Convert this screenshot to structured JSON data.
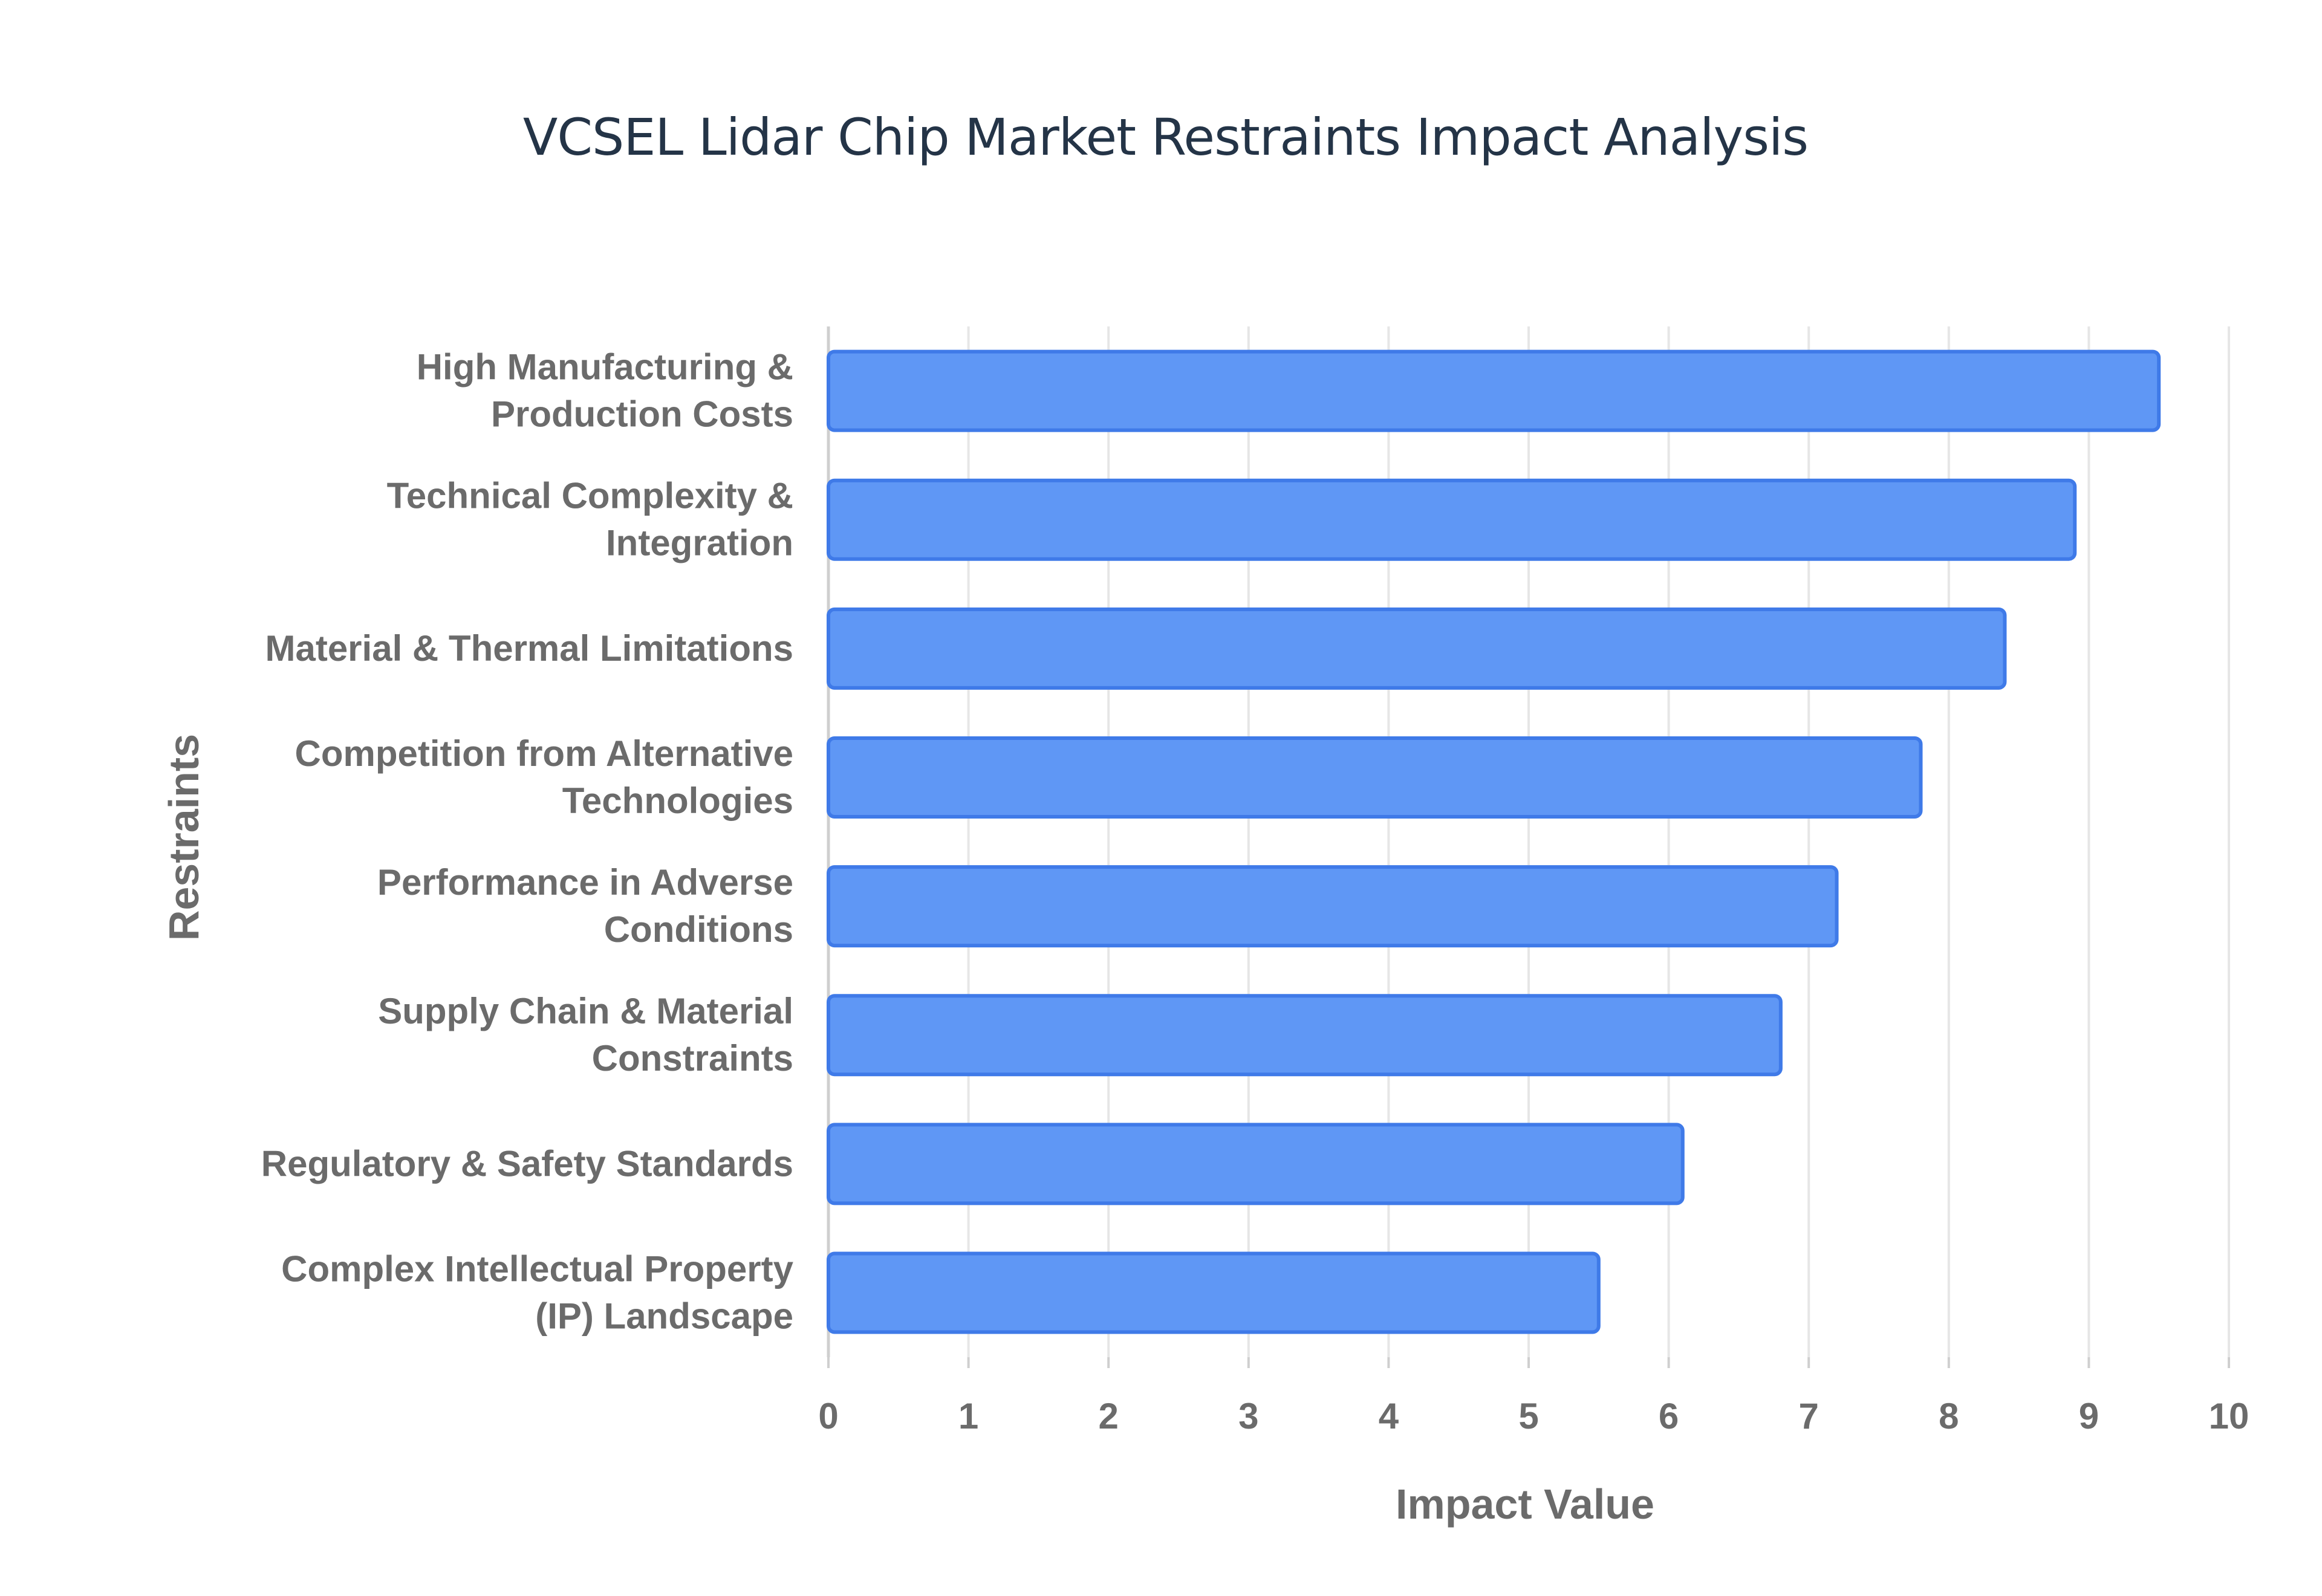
{
  "chart_data": {
    "type": "bar",
    "orientation": "horizontal",
    "title": "VCSEL Lidar Chip Market Restraints Impact Analysis",
    "xlabel": "Impact Value",
    "ylabel": "Restraints",
    "xlim": [
      0,
      10
    ],
    "xticks": [
      "0",
      "1",
      "2",
      "3",
      "4",
      "5",
      "6",
      "7",
      "8",
      "9",
      "10"
    ],
    "grid": true,
    "legend": "none",
    "categories": [
      [
        "High Manufacturing &",
        "Production Costs"
      ],
      [
        "Technical Complexity &",
        "Integration"
      ],
      [
        "Material & Thermal Limitations"
      ],
      [
        "Competition from Alternative",
        "Technologies"
      ],
      [
        "Performance in Adverse",
        "Conditions"
      ],
      [
        "Supply Chain & Material",
        "Constraints"
      ],
      [
        "Regulatory & Safety Standards"
      ],
      [
        "Complex Intellectual Property",
        "(IP) Landscape"
      ]
    ],
    "values": [
      9.5,
      8.9,
      8.4,
      7.8,
      7.2,
      6.8,
      6.1,
      5.5
    ],
    "colors": {
      "bar_fill": "#5f97f5",
      "bar_stroke": "#3f7ae8",
      "grid": "#e6e6e6",
      "axis": "#cfcfcf",
      "text": "#6b6b6b",
      "title": "#243447"
    }
  }
}
